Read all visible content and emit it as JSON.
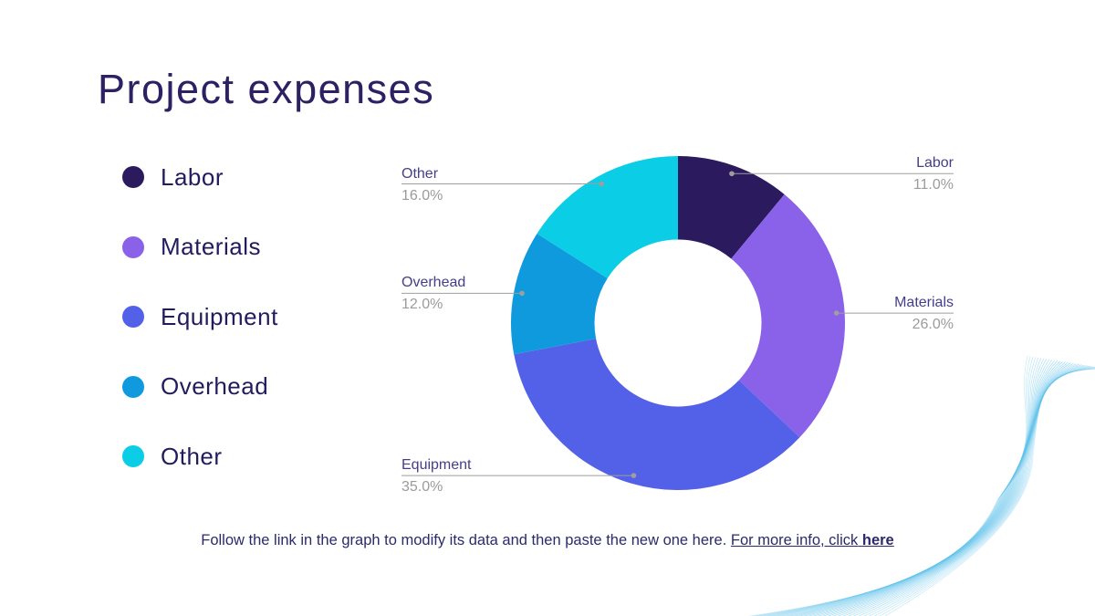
{
  "title": "Project expenses",
  "legend": {
    "items": [
      {
        "label": "Labor",
        "color": "#2b1a5e"
      },
      {
        "label": "Materials",
        "color": "#8a62ea"
      },
      {
        "label": "Equipment",
        "color": "#5360e8"
      },
      {
        "label": "Overhead",
        "color": "#0f9add"
      },
      {
        "label": "Other",
        "color": "#0bcde6"
      }
    ]
  },
  "chart_data": {
    "type": "pie",
    "subtype": "donut",
    "title": "",
    "categories": [
      "Labor",
      "Materials",
      "Equipment",
      "Overhead",
      "Other"
    ],
    "values": [
      11.0,
      26.0,
      35.0,
      12.0,
      16.0
    ],
    "value_labels": [
      "11.0%",
      "26.0%",
      "35.0%",
      "12.0%",
      "16.0%"
    ],
    "unit": "%",
    "colors": [
      "#2b1a5e",
      "#8a62ea",
      "#5360e8",
      "#0f9add",
      "#0bcde6"
    ],
    "direction": "clockwise",
    "start_angle_deg": 0,
    "inner_radius_ratio": 0.5,
    "legend_position": "left",
    "label_name_color": "#453e8a",
    "label_pct_color": "#9b9b9f",
    "leader_line_color": "#9e9e9e"
  },
  "footer": {
    "text": "Follow the link in the graph to modify its data and then paste the new one here.",
    "link_text": "For more info, click",
    "link_bold": "here"
  },
  "decor": {
    "wave_color": "#5ec1ea"
  }
}
